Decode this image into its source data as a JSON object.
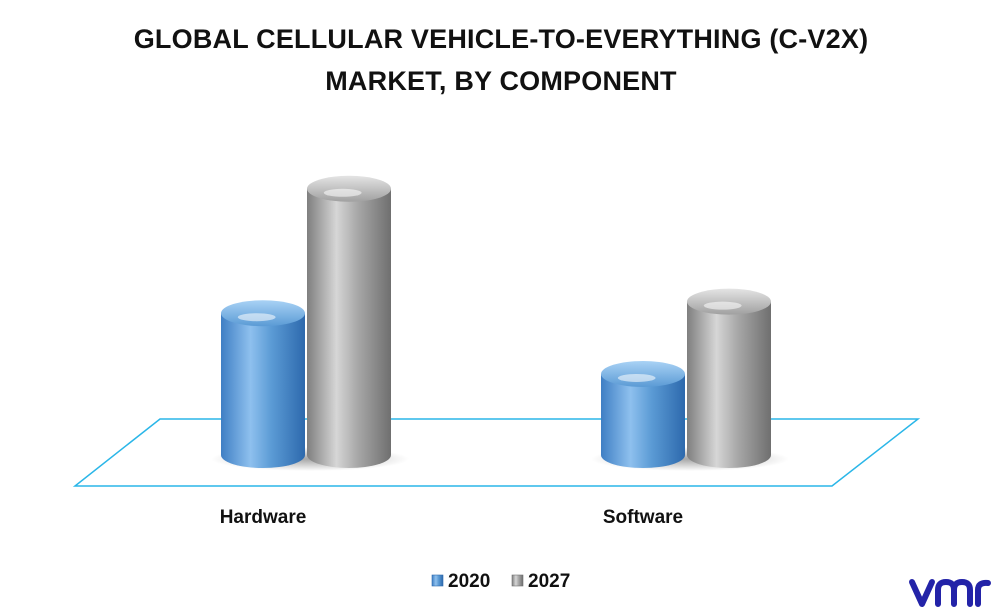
{
  "title_lines": [
    "GLOBAL CELLULAR VEHICLE-TO-EVERYTHING (C-V2X)",
    "MARKET, BY COMPONENT"
  ],
  "chart_data": {
    "type": "bar",
    "title": "GLOBAL CELLULAR VEHICLE-TO-EVERYTHING (C-V2X) MARKET, BY COMPONENT",
    "categories": [
      "Hardware",
      "Software"
    ],
    "series": [
      {
        "name": "2020",
        "values": [
          49,
          28
        ],
        "color": "#5b9bd5"
      },
      {
        "name": "2027",
        "values": [
          92,
          53
        ],
        "color": "#9e9e9e"
      }
    ],
    "ylim": [
      0,
      100
    ],
    "grid": false,
    "legend_position": "bottom"
  },
  "logo": {
    "text": "vmr",
    "color": "#2323a8"
  }
}
